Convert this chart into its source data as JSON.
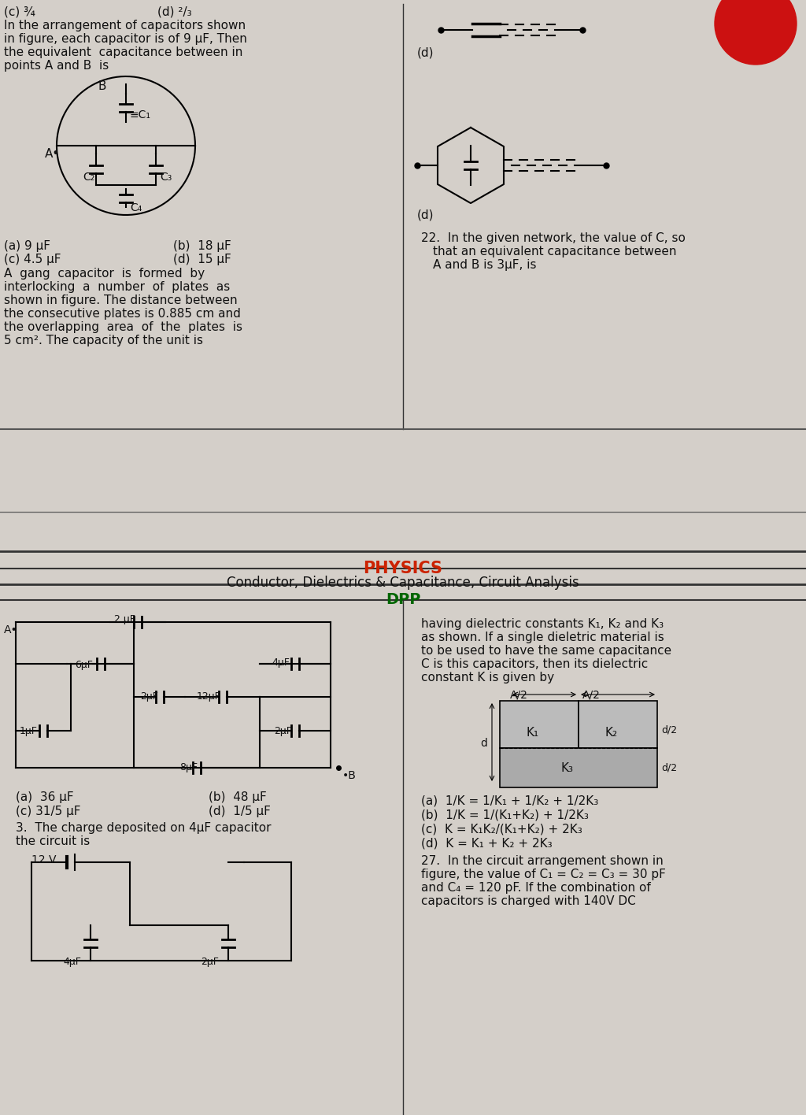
{
  "bg_color": "#d4cfc9",
  "text_color": "#1a1a1a",
  "physics_color": "#cc2200",
  "dpp_color": "#006600",
  "title1": "PHYSICS",
  "title2": "Conductor, Dielectrics & Capacitance, Circuit Analysis",
  "title3": "DPP",
  "q_cap_text": [
    "In the arrangement of capacitors shown",
    "in figure, each capacitor is of 9 μF, Then",
    "the equivalent  capacitance between in",
    "points A and B  is"
  ],
  "q_answers_1": [
    [
      "(a) 9 μF",
      "(b)  18 μF"
    ],
    [
      "(c) 4.5 μF",
      "(d)  15 μF"
    ]
  ],
  "gang_text": [
    "A  gang  capacitor  is  formed  by",
    "interlocking  a  number  of  plates  as",
    "shown in figure. The distance between",
    "the consecutive plates is 0.885 cm and",
    "the overlapping  area  of  the  plates  is",
    "5 cm². The capacity of the unit is"
  ],
  "q22_text": [
    "22.  In the given network, the value of C, so",
    "that an equivalent capacitance between",
    "A and B is 3μF, is"
  ],
  "dpp_answers_left": [
    [
      "(a)  36 μF",
      "(b)  48 μF"
    ],
    [
      "(c) 31/5 μF",
      "(d)  1/5 μF"
    ]
  ],
  "dpp_q3": [
    "3.  The charge deposited on 4μF capacitor",
    "the circuit is"
  ],
  "dpp_right_para": [
    "having dielectric constants K₁, K₂ and K₃",
    "as shown. If a single dieletric material is",
    "to be used to have the same capacitance",
    "C is this capacitors, then its dielectric",
    "constant K is given by"
  ],
  "dpp_right_answers": [
    "(a)  1/K = 1/K₁ + 1/K₂ + 1/2K₃",
    "(b)  1/K = 1/(K₁+K₂) + 1/2K₃",
    "(c)  K = K₁K₂/(K₁+K₂) + 2K₃",
    "(d)  K = K₁ + K₂ + 2K₃"
  ],
  "q27_text": [
    "27.  In the circuit arrangement shown in",
    "figure, the value of C₁ = C₂ = C₃ = 30 pF",
    "and C₄ = 120 pF. If the combination of",
    "capacitors is charged with 140V DC"
  ],
  "red_circle_color": "#cc1111",
  "div_color": "#333333"
}
